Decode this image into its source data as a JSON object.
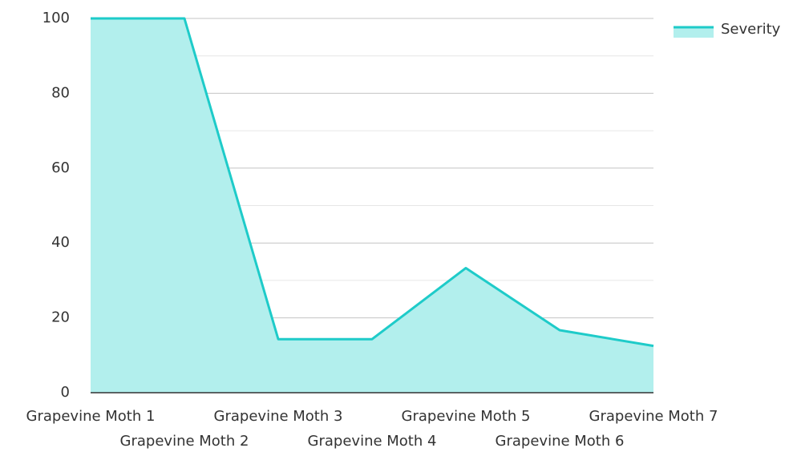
{
  "chart_data": {
    "type": "area",
    "categories": [
      "Grapevine Moth 1",
      "Grapevine Moth 2",
      "Grapevine Moth 3",
      "Grapevine Moth 4",
      "Grapevine Moth 5",
      "Grapevine Moth 6",
      "Grapevine Moth 7"
    ],
    "series": [
      {
        "name": "Severity",
        "color": "#1ecbc9",
        "fill": "#b2efed",
        "values": [
          100,
          100,
          14.3,
          14.3,
          33.3,
          16.7,
          12.5
        ]
      }
    ],
    "ylim": [
      0,
      100
    ],
    "yticks": [
      0,
      20,
      40,
      60,
      80,
      100
    ],
    "minor_yticks": [
      10,
      30,
      50,
      70,
      90
    ],
    "grid": true,
    "legend": "top-right"
  }
}
